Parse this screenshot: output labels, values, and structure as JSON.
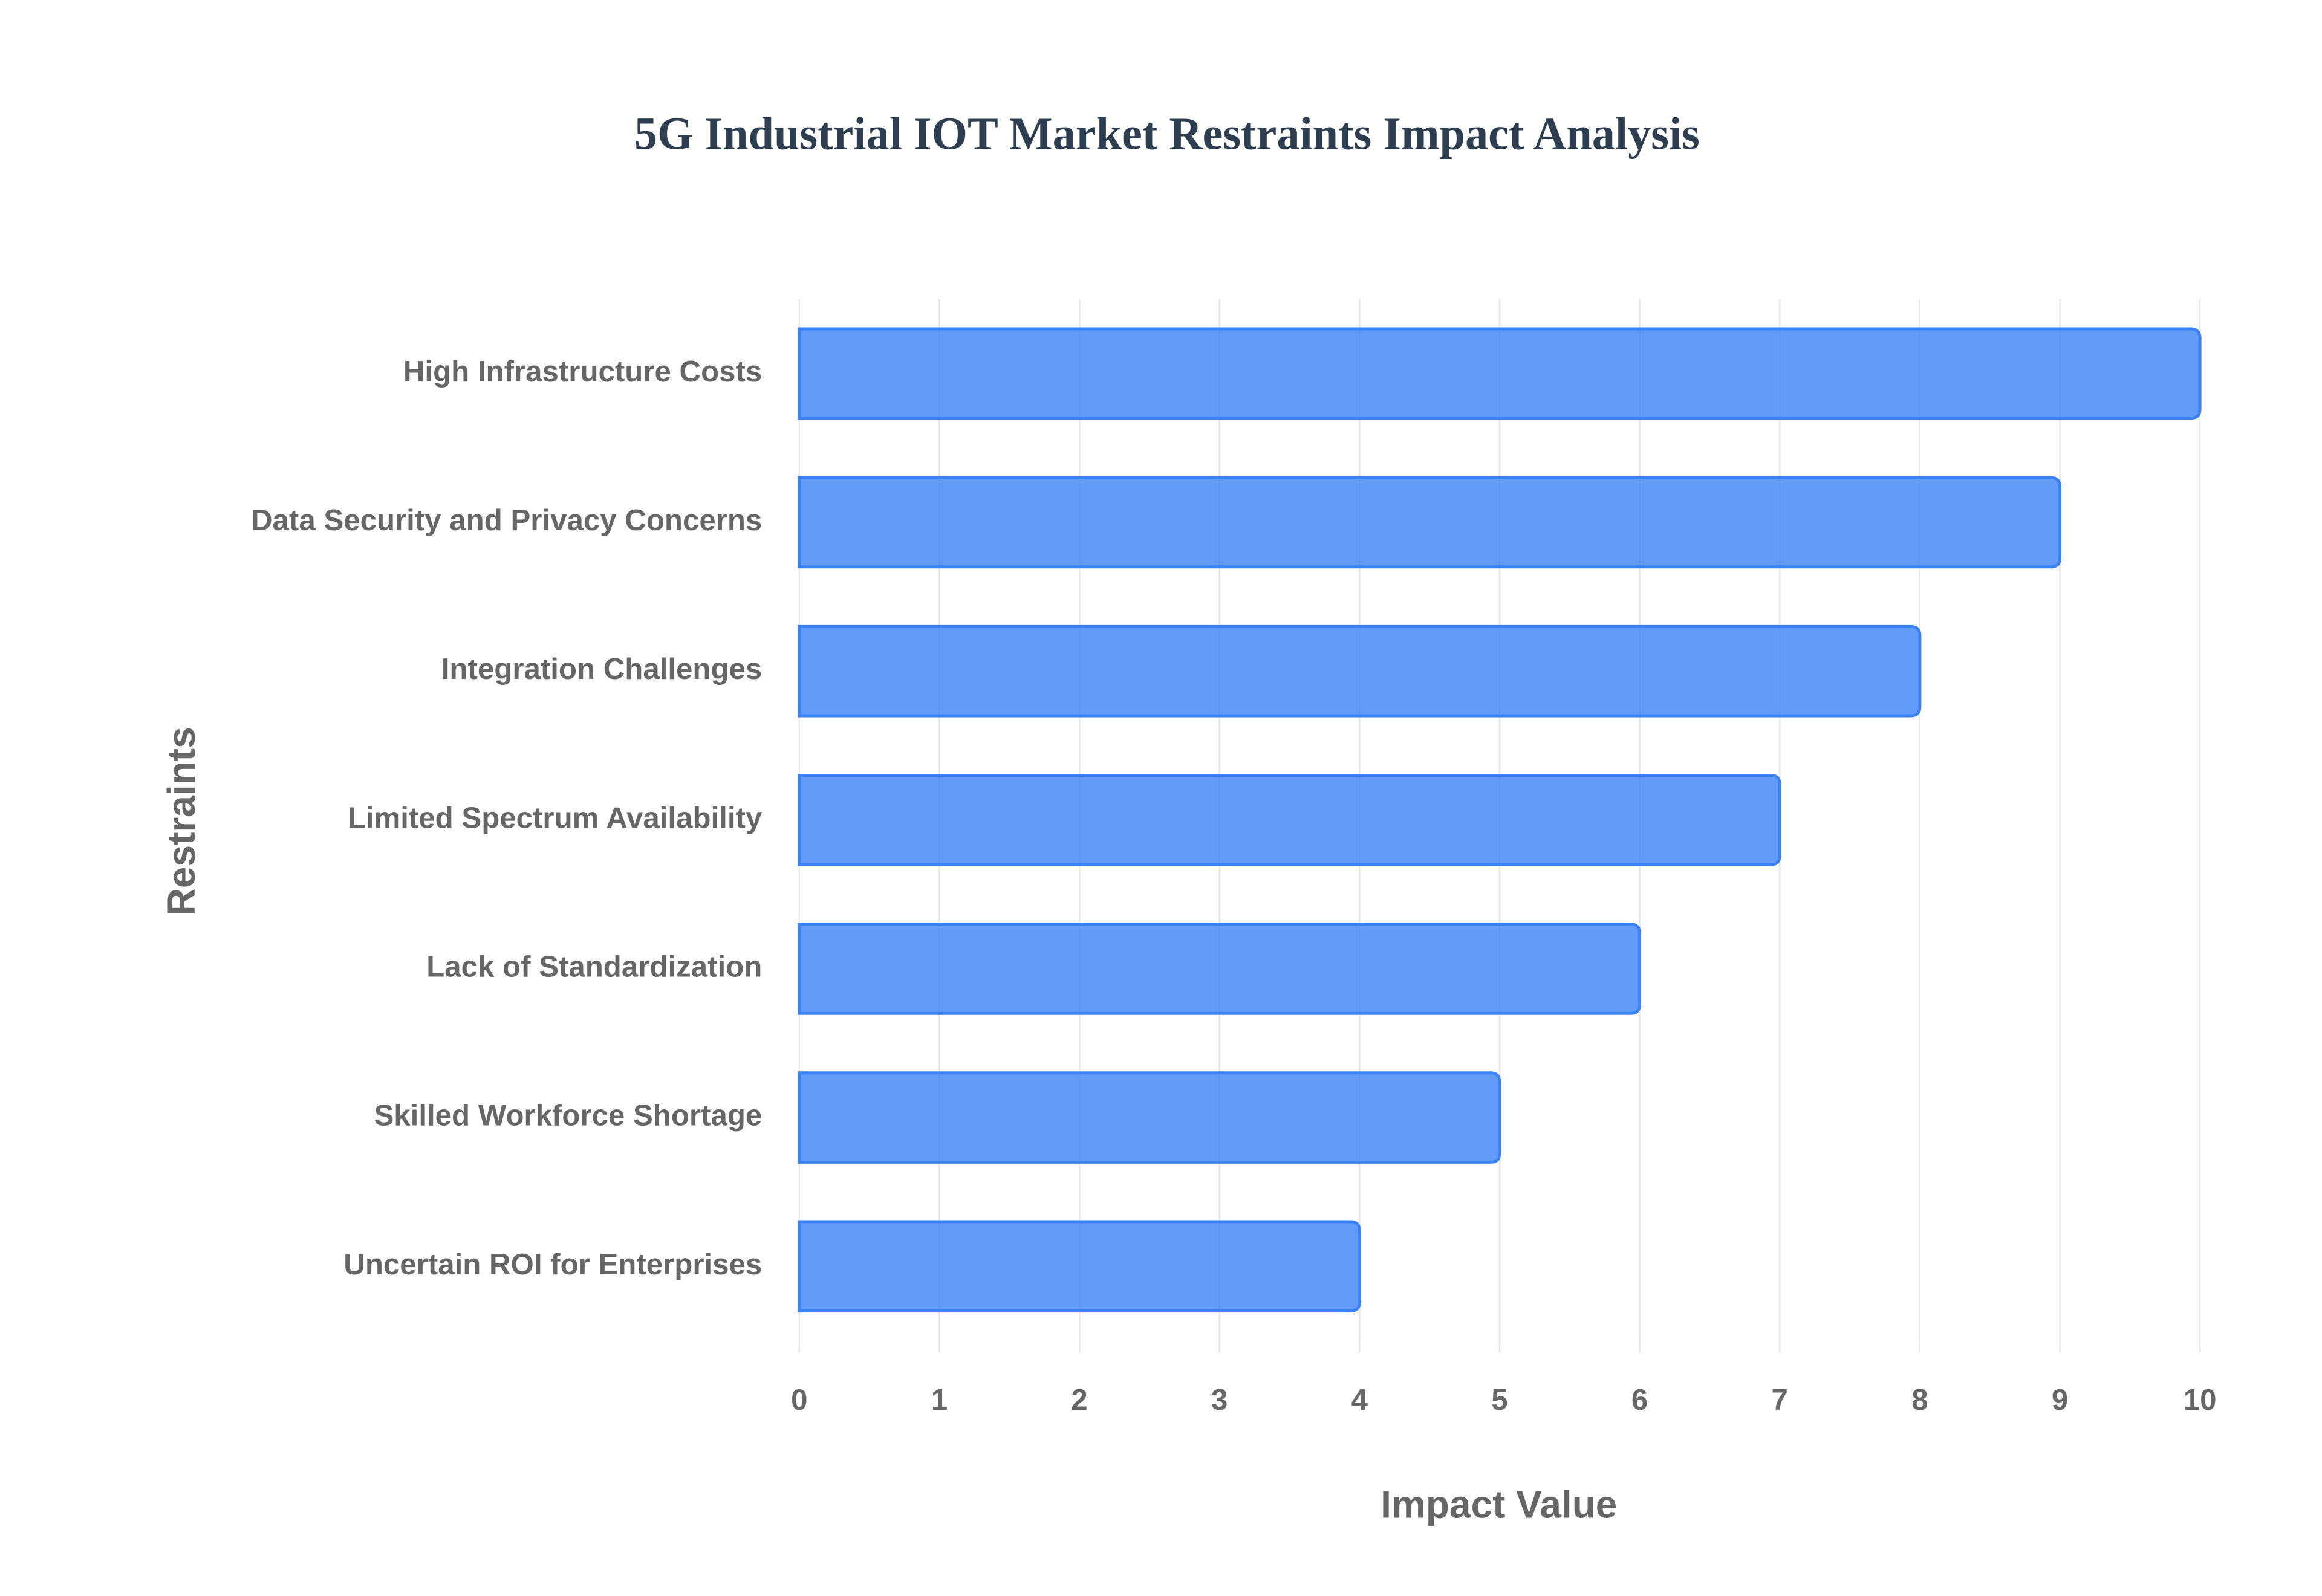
{
  "chart_data": {
    "type": "bar",
    "orientation": "horizontal",
    "title": "5G Industrial IOT Market Restraints Impact Analysis",
    "x_label": "Impact Value",
    "y_label": "Restraints",
    "categories": [
      "High Infrastructure Costs",
      "Data Security and Privacy Concerns",
      "Integration Challenges",
      "Limited Spectrum Availability",
      "Lack of Standardization",
      "Skilled Workforce Shortage",
      "Uncertain ROI for Enterprises"
    ],
    "values": [
      10,
      9,
      8,
      7,
      6,
      5,
      4
    ],
    "color": "#3b82f6",
    "xlim": [
      0,
      10
    ],
    "xticks": [
      0,
      1,
      2,
      3,
      4,
      5,
      6,
      7,
      8,
      9,
      10
    ],
    "grid": true
  }
}
